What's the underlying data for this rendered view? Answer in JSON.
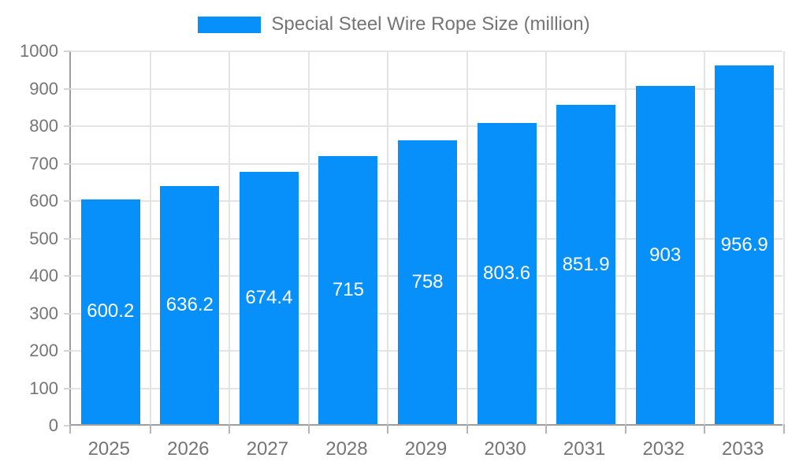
{
  "chart_data": {
    "type": "bar",
    "title": "Special Steel Wire Rope Size (million)",
    "categories": [
      "2025",
      "2026",
      "2027",
      "2028",
      "2029",
      "2030",
      "2031",
      "2032",
      "2033"
    ],
    "values": [
      600.2,
      636.2,
      674.4,
      715,
      758,
      803.6,
      851.9,
      903,
      956.9
    ],
    "value_labels": [
      "600.2",
      "636.2",
      "674.4",
      "715",
      "758",
      "803.6",
      "851.9",
      "903",
      "956.9"
    ],
    "xlabel": "",
    "ylabel": "",
    "ylim": [
      0,
      1000
    ],
    "yticks": [
      0,
      100,
      200,
      300,
      400,
      500,
      600,
      700,
      800,
      900,
      1000
    ],
    "grid": true,
    "legend_position": "top-center",
    "bar_color": "#0890fa",
    "bar_label_color": "#ffffff",
    "axis_text_color": "#757575",
    "grid_color": "#e4e4e4",
    "axis_line_color": "#9e9e9e"
  }
}
